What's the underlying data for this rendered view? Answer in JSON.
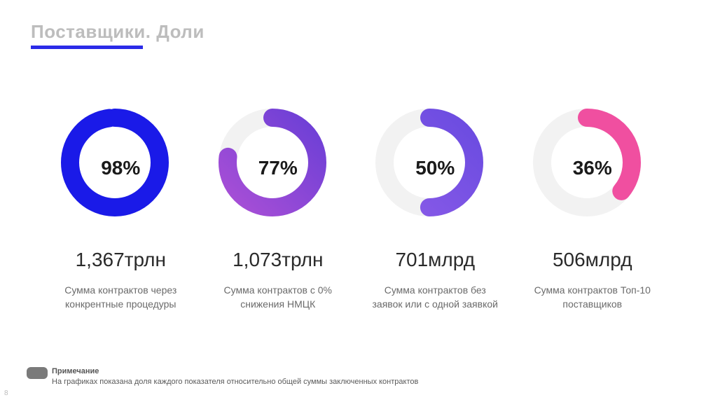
{
  "title": "Поставщики. Доли",
  "title_color": "#bdbdbd",
  "title_fontsize": 26,
  "underline_color": "#2b2be8",
  "underline_width": 160,
  "background": "#ffffff",
  "donut": {
    "outer_radius": 77,
    "stroke_width": 26,
    "track_color": "#f2f2f2",
    "pct_fontsize": 28,
    "amount_fontsize": 28,
    "desc_fontsize": 14,
    "desc_color": "#6a6a6a"
  },
  "items": [
    {
      "pct": 98,
      "pct_label": "98%",
      "color_start": "#1a1ae8",
      "color_end": "#1a1ae8",
      "amount": "1,367трлн",
      "desc": "Сумма контрактов через конкрентные процедуры"
    },
    {
      "pct": 77,
      "pct_label": "77%",
      "color_start": "#a94fd6",
      "color_end": "#6b3fd6",
      "amount": "1,073трлн",
      "desc": "Сумма контрактов с 0% снижения НМЦК"
    },
    {
      "pct": 50,
      "pct_label": "50%",
      "color_start": "#8a5be8",
      "color_end": "#6a4be0",
      "amount": "701млрд",
      "desc": "Сумма контрактов без заявок или с одной заявкой"
    },
    {
      "pct": 36,
      "pct_label": "36%",
      "color_start": "#f04fa0",
      "color_end": "#f04fa0",
      "amount": "506млрд",
      "desc": "Сумма контрактов Топ-10 поставщиков"
    }
  ],
  "note": {
    "title": "Примечание",
    "text": "На графиках показана доля каждого показателя относительно общей суммы заключенных контрактов",
    "icon_color": "#7a7a7a"
  },
  "page_number": "8"
}
